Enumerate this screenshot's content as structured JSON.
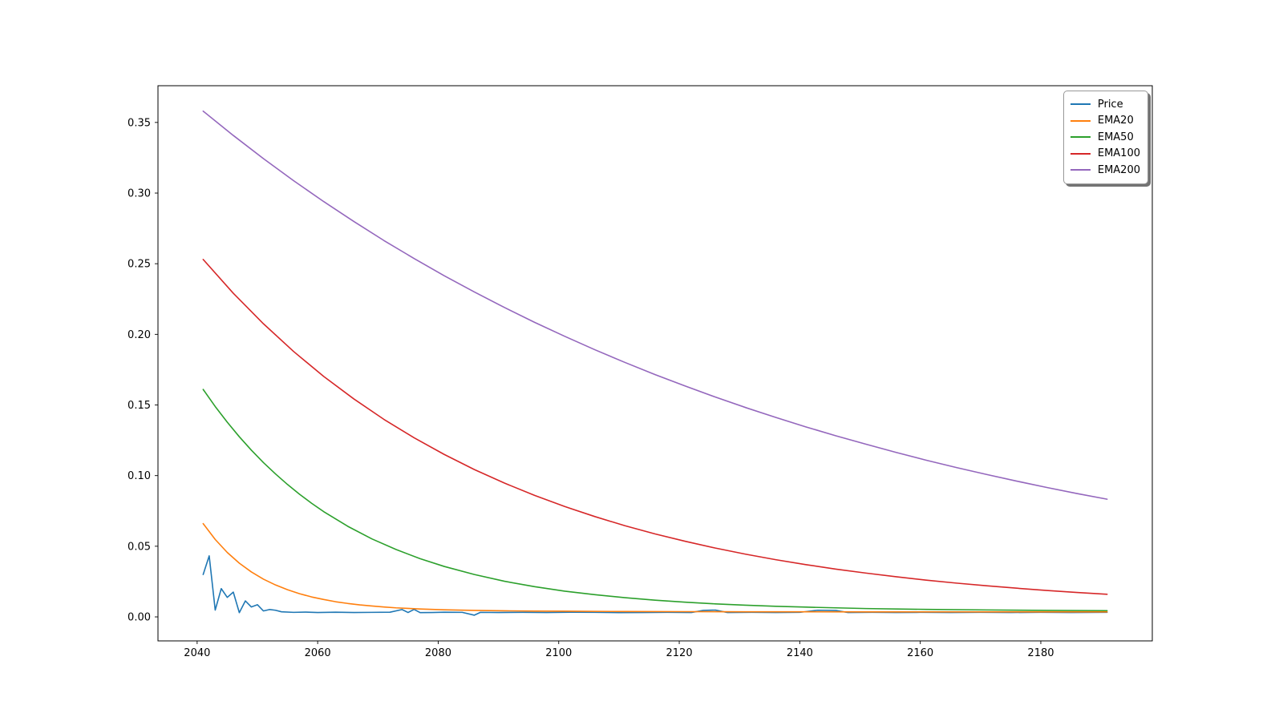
{
  "chart_data": {
    "type": "line",
    "title": "",
    "xlabel": "",
    "ylabel": "",
    "xlim": [
      2033.5,
      2198.5
    ],
    "ylim": [
      -0.017,
      0.376
    ],
    "x_ticks": [
      2040,
      2060,
      2080,
      2100,
      2120,
      2140,
      2160,
      2180
    ],
    "y_ticks": [
      0.0,
      0.05,
      0.1,
      0.15,
      0.2,
      0.25,
      0.3,
      0.35
    ],
    "y_tick_decimals": 2,
    "grid": false,
    "legend_position": "upper right",
    "legend_items": [
      "Price",
      "EMA20",
      "EMA50",
      "EMA100",
      "EMA200"
    ],
    "series": [
      {
        "name": "Price",
        "color": "#1f77b4",
        "points": [
          [
            2041,
            0.03
          ],
          [
            2042,
            0.0432
          ],
          [
            2043,
            0.0048
          ],
          [
            2044,
            0.02
          ],
          [
            2045,
            0.0138
          ],
          [
            2046,
            0.0175
          ],
          [
            2047,
            0.003
          ],
          [
            2048,
            0.0113
          ],
          [
            2049,
            0.007
          ],
          [
            2050,
            0.0086
          ],
          [
            2051,
            0.0042
          ],
          [
            2052,
            0.0052
          ],
          [
            2053,
            0.0047
          ],
          [
            2054,
            0.0036
          ],
          [
            2056,
            0.0032
          ],
          [
            2058,
            0.0034
          ],
          [
            2060,
            0.0031
          ],
          [
            2063,
            0.0033
          ],
          [
            2066,
            0.0031
          ],
          [
            2069,
            0.0032
          ],
          [
            2072,
            0.0033
          ],
          [
            2074,
            0.0052
          ],
          [
            2075,
            0.0031
          ],
          [
            2076,
            0.0053
          ],
          [
            2077,
            0.003
          ],
          [
            2079,
            0.0031
          ],
          [
            2081,
            0.0033
          ],
          [
            2084,
            0.0032
          ],
          [
            2086,
            0.0012
          ],
          [
            2087,
            0.0032
          ],
          [
            2090,
            0.0031
          ],
          [
            2094,
            0.0032
          ],
          [
            2098,
            0.0031
          ],
          [
            2102,
            0.0033
          ],
          [
            2106,
            0.0032
          ],
          [
            2110,
            0.003
          ],
          [
            2114,
            0.0031
          ],
          [
            2118,
            0.0032
          ],
          [
            2122,
            0.0031
          ],
          [
            2124,
            0.0046
          ],
          [
            2126,
            0.0048
          ],
          [
            2128,
            0.0031
          ],
          [
            2132,
            0.0032
          ],
          [
            2136,
            0.0031
          ],
          [
            2140,
            0.0032
          ],
          [
            2143,
            0.0047
          ],
          [
            2146,
            0.0045
          ],
          [
            2148,
            0.0031
          ],
          [
            2152,
            0.0032
          ],
          [
            2156,
            0.0031
          ],
          [
            2160,
            0.0032
          ],
          [
            2165,
            0.0031
          ],
          [
            2170,
            0.0032
          ],
          [
            2175,
            0.0031
          ],
          [
            2180,
            0.0032
          ],
          [
            2185,
            0.0031
          ],
          [
            2191,
            0.0032
          ]
        ]
      },
      {
        "name": "EMA20",
        "color": "#ff7f0e",
        "points": [
          [
            2041,
            0.066
          ],
          [
            2043,
            0.0548
          ],
          [
            2045,
            0.0456
          ],
          [
            2047,
            0.038
          ],
          [
            2049,
            0.0318
          ],
          [
            2051,
            0.0267
          ],
          [
            2053,
            0.0226
          ],
          [
            2055,
            0.0192
          ],
          [
            2057,
            0.0164
          ],
          [
            2059,
            0.0141
          ],
          [
            2061,
            0.0123
          ],
          [
            2063,
            0.0107
          ],
          [
            2065,
            0.0095
          ],
          [
            2067,
            0.0085
          ],
          [
            2069,
            0.0077
          ],
          [
            2071,
            0.007
          ],
          [
            2073,
            0.0064
          ],
          [
            2075,
            0.006
          ],
          [
            2077,
            0.0056
          ],
          [
            2079,
            0.0053
          ],
          [
            2081,
            0.005
          ],
          [
            2086,
            0.0046
          ],
          [
            2091,
            0.0043
          ],
          [
            2096,
            0.0041
          ],
          [
            2101,
            0.004
          ],
          [
            2111,
            0.0038
          ],
          [
            2121,
            0.0037
          ],
          [
            2131,
            0.0036
          ],
          [
            2141,
            0.0036
          ],
          [
            2151,
            0.0035
          ],
          [
            2161,
            0.0035
          ],
          [
            2171,
            0.0035
          ],
          [
            2181,
            0.0035
          ],
          [
            2191,
            0.0035
          ]
        ]
      },
      {
        "name": "EMA50",
        "color": "#2ca02c",
        "points": [
          [
            2041,
            0.161
          ],
          [
            2043,
            0.1489
          ],
          [
            2045,
            0.1378
          ],
          [
            2047,
            0.1275
          ],
          [
            2049,
            0.118
          ],
          [
            2051,
            0.1092
          ],
          [
            2053,
            0.1012
          ],
          [
            2055,
            0.0937
          ],
          [
            2057,
            0.0868
          ],
          [
            2059,
            0.0804
          ],
          [
            2061,
            0.0745
          ],
          [
            2065,
            0.0641
          ],
          [
            2069,
            0.0552
          ],
          [
            2073,
            0.0477
          ],
          [
            2077,
            0.0412
          ],
          [
            2081,
            0.0357
          ],
          [
            2086,
            0.03
          ],
          [
            2091,
            0.0252
          ],
          [
            2096,
            0.0214
          ],
          [
            2101,
            0.0182
          ],
          [
            2106,
            0.0157
          ],
          [
            2111,
            0.0136
          ],
          [
            2116,
            0.0118
          ],
          [
            2121,
            0.0104
          ],
          [
            2126,
            0.0092
          ],
          [
            2131,
            0.0083
          ],
          [
            2136,
            0.0075
          ],
          [
            2141,
            0.0069
          ],
          [
            2151,
            0.0059
          ],
          [
            2161,
            0.0053
          ],
          [
            2171,
            0.0049
          ],
          [
            2181,
            0.0046
          ],
          [
            2191,
            0.0044
          ]
        ]
      },
      {
        "name": "EMA100",
        "color": "#d62728",
        "points": [
          [
            2041,
            0.253
          ],
          [
            2046,
            0.2291
          ],
          [
            2051,
            0.2075
          ],
          [
            2056,
            0.1879
          ],
          [
            2061,
            0.1702
          ],
          [
            2066,
            0.1543
          ],
          [
            2071,
            0.1398
          ],
          [
            2076,
            0.1268
          ],
          [
            2081,
            0.115
          ],
          [
            2086,
            0.1043
          ],
          [
            2091,
            0.0947
          ],
          [
            2096,
            0.086
          ],
          [
            2101,
            0.0781
          ],
          [
            2106,
            0.071
          ],
          [
            2111,
            0.0645
          ],
          [
            2116,
            0.0587
          ],
          [
            2121,
            0.0535
          ],
          [
            2126,
            0.0487
          ],
          [
            2131,
            0.0444
          ],
          [
            2136,
            0.0405
          ],
          [
            2141,
            0.037
          ],
          [
            2146,
            0.0338
          ],
          [
            2151,
            0.031
          ],
          [
            2156,
            0.0284
          ],
          [
            2161,
            0.026
          ],
          [
            2166,
            0.0239
          ],
          [
            2171,
            0.022
          ],
          [
            2176,
            0.0203
          ],
          [
            2181,
            0.0187
          ],
          [
            2186,
            0.0173
          ],
          [
            2191,
            0.016
          ]
        ]
      },
      {
        "name": "EMA200",
        "color": "#9467bd",
        "points": [
          [
            2041,
            0.358
          ],
          [
            2046,
            0.3408
          ],
          [
            2051,
            0.3244
          ],
          [
            2056,
            0.3088
          ],
          [
            2061,
            0.294
          ],
          [
            2066,
            0.2799
          ],
          [
            2071,
            0.2664
          ],
          [
            2076,
            0.2537
          ],
          [
            2081,
            0.2415
          ],
          [
            2086,
            0.23
          ],
          [
            2091,
            0.219
          ],
          [
            2096,
            0.2085
          ],
          [
            2101,
            0.1986
          ],
          [
            2106,
            0.1891
          ],
          [
            2111,
            0.1801
          ],
          [
            2116,
            0.1715
          ],
          [
            2121,
            0.1634
          ],
          [
            2126,
            0.1556
          ],
          [
            2131,
            0.1482
          ],
          [
            2136,
            0.1412
          ],
          [
            2141,
            0.1345
          ],
          [
            2146,
            0.1282
          ],
          [
            2151,
            0.1222
          ],
          [
            2156,
            0.1164
          ],
          [
            2161,
            0.1109
          ],
          [
            2166,
            0.1057
          ],
          [
            2171,
            0.1008
          ],
          [
            2176,
            0.0961
          ],
          [
            2181,
            0.0916
          ],
          [
            2186,
            0.0873
          ],
          [
            2191,
            0.0833
          ]
        ]
      }
    ],
    "axis_color": "#000000",
    "tick_label_color": "#000000",
    "background_color": "#ffffff"
  }
}
